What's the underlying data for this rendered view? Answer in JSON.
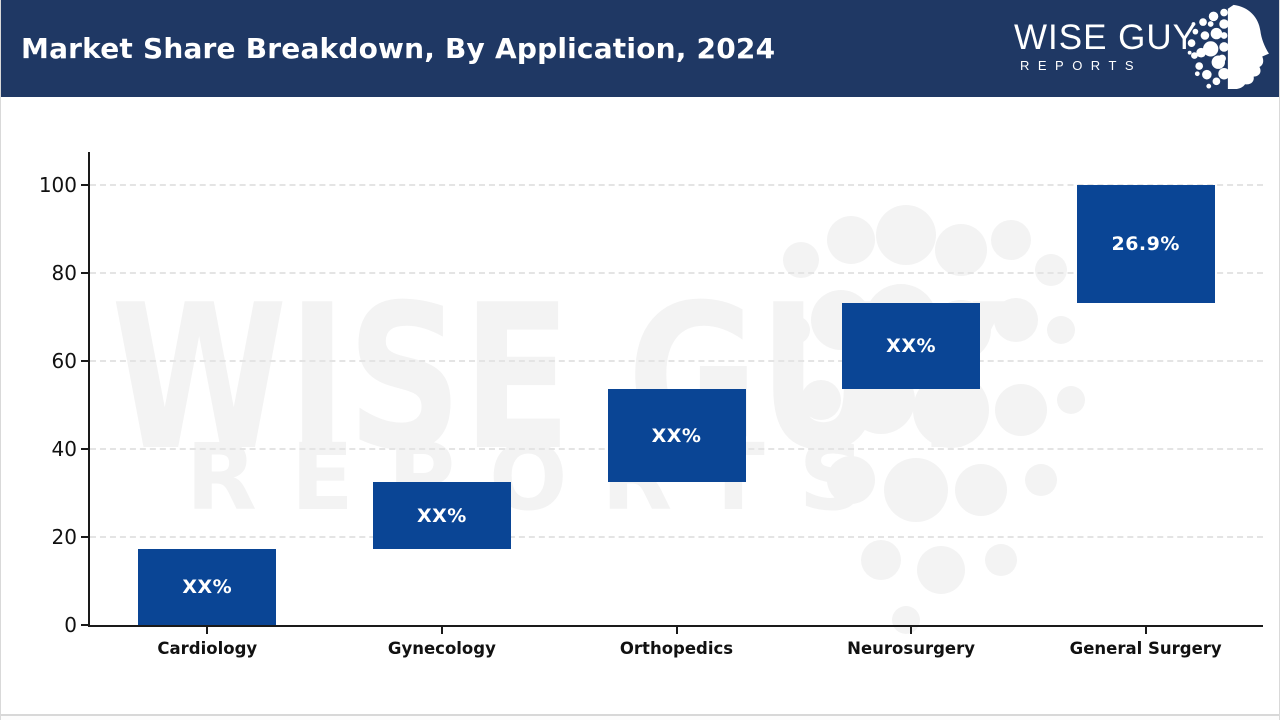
{
  "header": {
    "title": "Market Share Breakdown, By Application, 2024",
    "brand_line1": "WISE GUY",
    "brand_line2": "REPORTS"
  },
  "watermark": {
    "line1": "WISE GUY",
    "line2": "REPORTS"
  },
  "colors": {
    "header_bg": "#1f3864",
    "bar": "#0a4595",
    "grid": "#e4e4e4",
    "axis": "#1a1a1a",
    "watermark": "#f3f3f3"
  },
  "chart_data": {
    "type": "bar",
    "subtype": "waterfall",
    "title": "Market Share Breakdown, By Application, 2024",
    "xlabel": "",
    "ylabel": "",
    "categories": [
      "Cardiology",
      "Gynecology",
      "Orthopedics",
      "Neurosurgery",
      "General Surgery"
    ],
    "segments": [
      {
        "category": "Cardiology",
        "start": 0,
        "end": 17.2,
        "label": "XX%"
      },
      {
        "category": "Gynecology",
        "start": 17.2,
        "end": 32.4,
        "label": "XX%"
      },
      {
        "category": "Orthopedics",
        "start": 32.4,
        "end": 53.7,
        "label": "XX%"
      },
      {
        "category": "Neurosurgery",
        "start": 53.7,
        "end": 73.1,
        "label": "XX%"
      },
      {
        "category": "General Surgery",
        "start": 73.1,
        "end": 100,
        "label": "26.9%"
      }
    ],
    "yticks": [
      0,
      20,
      40,
      60,
      80,
      100
    ],
    "ylim": [
      0,
      107
    ],
    "grid": true,
    "legend": false
  }
}
